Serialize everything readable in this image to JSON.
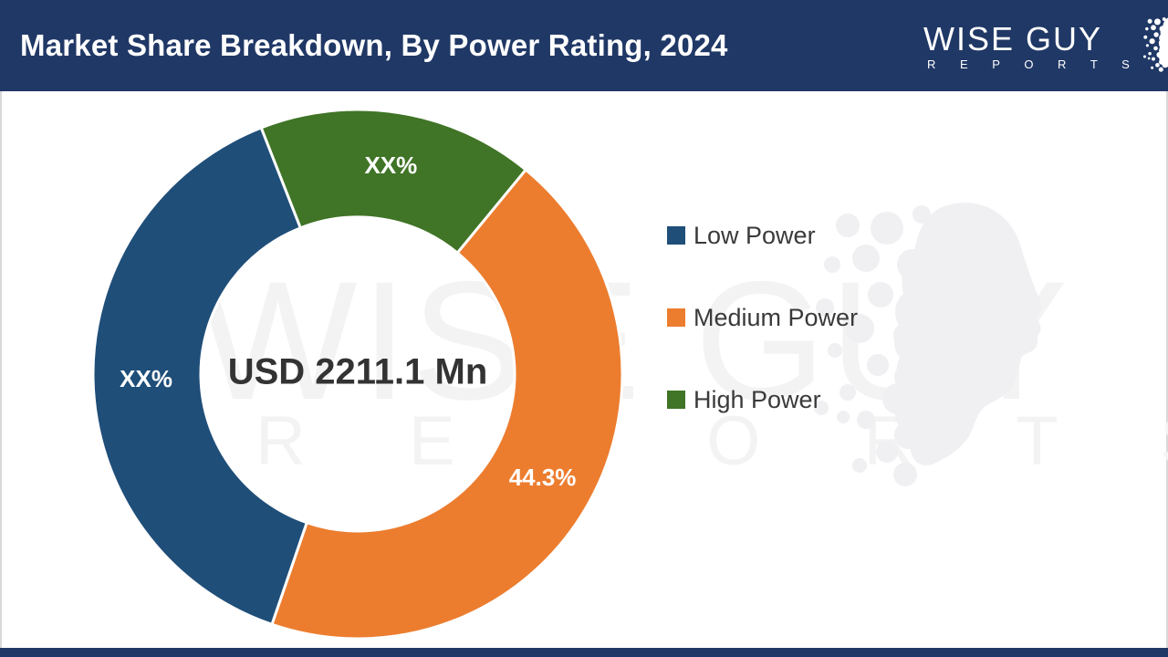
{
  "header": {
    "title": "Market Share Breakdown, By Power Rating, 2024",
    "bg_color": "#203866",
    "logo": {
      "line1": "WISE GUY",
      "line2": "R E P O R T S"
    }
  },
  "watermark": {
    "line1": "WISE GUY",
    "line2": "R E P O R T S"
  },
  "chart_data": {
    "type": "pie",
    "subtype": "donut",
    "title": "Market Share Breakdown, By Power Rating, 2024",
    "center_label": "USD 2211.1 Mn",
    "start_angle_clockwise_from_top_deg": -21.4,
    "draw_order_clockwise": [
      2,
      1,
      0
    ],
    "legend_position": "right",
    "categories": [
      "Low Power",
      "Medium Power",
      "High Power"
    ],
    "series": [
      {
        "name": "Market Share",
        "values": [
          38.8,
          44.3,
          16.9
        ]
      }
    ],
    "slices": [
      {
        "label": "Low Power",
        "value_pct": 38.8,
        "display_label": "XX%",
        "color": "#1f4e79"
      },
      {
        "label": "Medium Power",
        "value_pct": 44.3,
        "display_label": "44.3%",
        "color": "#ec7d2f"
      },
      {
        "label": "High Power",
        "value_pct": 16.9,
        "display_label": "XX%",
        "color": "#407426"
      }
    ]
  },
  "legend": {
    "items": [
      {
        "label": "Low Power",
        "color": "#1f4e79"
      },
      {
        "label": "Medium Power",
        "color": "#ec7d2f"
      },
      {
        "label": "High Power",
        "color": "#407426"
      }
    ]
  }
}
